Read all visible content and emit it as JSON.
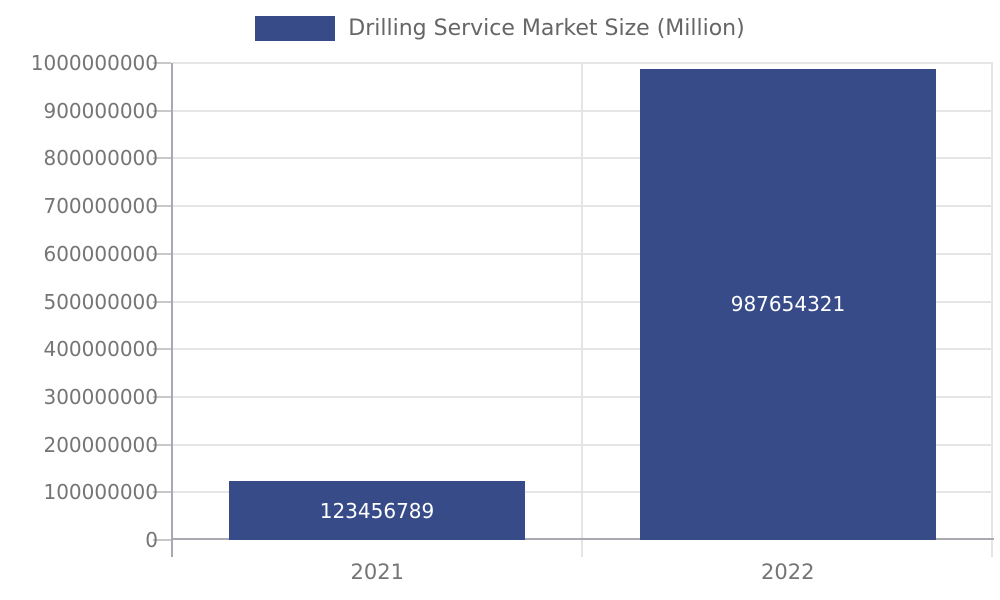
{
  "legend": {
    "label": "Drilling Service Market Size (Million)",
    "swatch_color": "#374B88"
  },
  "chart_data": {
    "type": "bar",
    "title": "Drilling Service Market Size (Million)",
    "categories": [
      "2021",
      "2022"
    ],
    "series": [
      {
        "name": "Drilling Service Market Size (Million)",
        "values": [
          123456789,
          987654321
        ]
      }
    ],
    "value_labels": [
      "123456789",
      "987654321"
    ],
    "ylim": [
      0,
      1000000000
    ],
    "ytick_step": 100000000,
    "ytick_labels": [
      "0",
      "100000000",
      "200000000",
      "300000000",
      "400000000",
      "500000000",
      "600000000",
      "700000000",
      "800000000",
      "900000000",
      "1000000000"
    ],
    "xlabel": "",
    "ylabel": "",
    "grid": true,
    "legend_position": "top",
    "bar_color": "#374B88",
    "value_label_color": "#ffffff"
  },
  "colors": {
    "axis_line": "#a9a9b2",
    "gridline": "#e5e5e5",
    "tick_text": "#757575",
    "legend_text": "#666666"
  }
}
